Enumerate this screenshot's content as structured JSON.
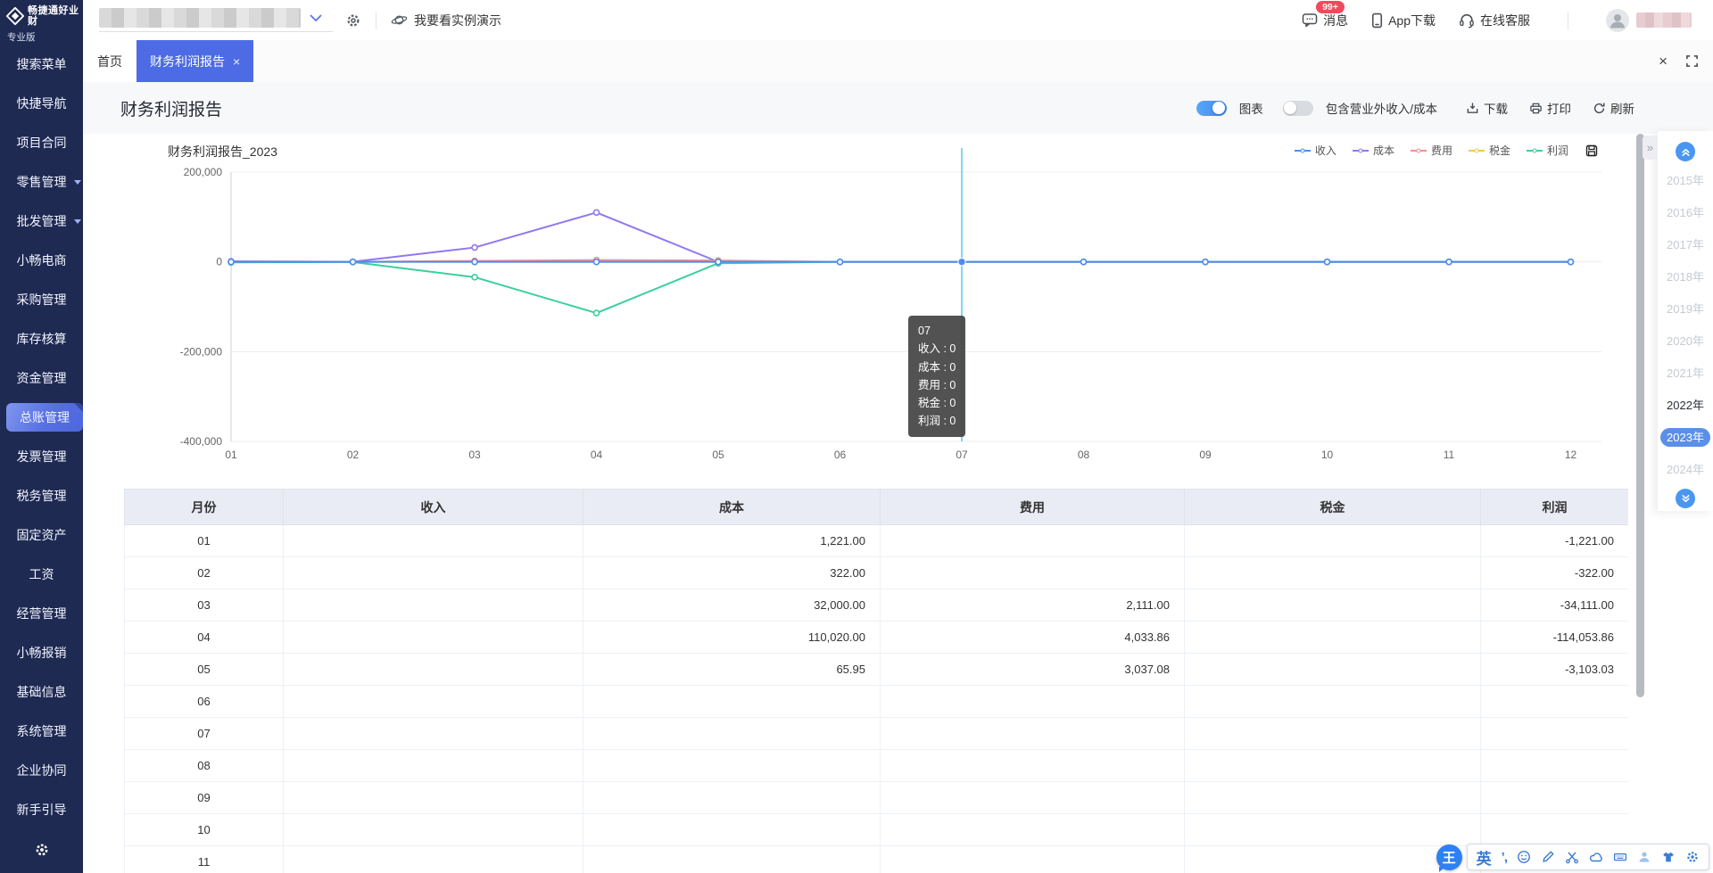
{
  "app": {
    "logo_title": "畅捷通好业财",
    "logo_subtitle": "专业版",
    "accent": "#4d6be5",
    "sidebar_bg": "#1f2a52"
  },
  "sidebar": {
    "items": [
      {
        "label": "搜索菜单"
      },
      {
        "label": "快捷导航"
      },
      {
        "label": "项目合同"
      },
      {
        "label": "零售管理",
        "caret": true
      },
      {
        "label": "批发管理",
        "caret": true
      },
      {
        "label": "小畅电商"
      },
      {
        "label": "采购管理"
      },
      {
        "label": "库存核算"
      },
      {
        "label": "资金管理"
      },
      {
        "label": "总账管理",
        "active": true
      },
      {
        "label": "发票管理"
      },
      {
        "label": "税务管理"
      },
      {
        "label": "固定资产"
      },
      {
        "label": "工资"
      },
      {
        "label": "经营管理"
      },
      {
        "label": "小畅报销"
      },
      {
        "label": "基础信息"
      },
      {
        "label": "系统管理"
      },
      {
        "label": "企业协同"
      },
      {
        "label": "新手引导"
      }
    ]
  },
  "topbar": {
    "demo_label": "我要看实例演示",
    "messages_label": "消息",
    "messages_badge": "99+",
    "app_download_label": "App下载",
    "support_label": "在线客服"
  },
  "tabs": {
    "items": [
      {
        "label": "首页",
        "active": false
      },
      {
        "label": "财务利润报告",
        "active": true,
        "closable": true
      }
    ]
  },
  "page": {
    "title": "财务利润报告",
    "chart_toggle_label": "图表",
    "chart_toggle_on": true,
    "include_toggle_label": "包含营业外收入/成本",
    "include_toggle_on": false,
    "download_label": "下载",
    "print_label": "打印",
    "refresh_label": "刷新"
  },
  "chart_data": {
    "type": "line",
    "title": "财务利润报告_2023",
    "categories": [
      "01",
      "02",
      "03",
      "04",
      "05",
      "06",
      "07",
      "08",
      "09",
      "10",
      "11",
      "12"
    ],
    "series": [
      {
        "name": "收入",
        "color": "#4e8cf0",
        "values": [
          0,
          0,
          0,
          0,
          0,
          0,
          0,
          0,
          0,
          0,
          0,
          0
        ]
      },
      {
        "name": "成本",
        "color": "#9277f0",
        "values": [
          1221,
          322,
          32000,
          110020,
          65.95,
          0,
          0,
          0,
          0,
          0,
          0,
          0
        ]
      },
      {
        "name": "费用",
        "color": "#f08f8f",
        "values": [
          0,
          0,
          2111,
          4033.86,
          3037.08,
          0,
          0,
          0,
          0,
          0,
          0,
          0
        ]
      },
      {
        "name": "税金",
        "color": "#f5c64a",
        "values": [
          0,
          0,
          0,
          0,
          0,
          0,
          0,
          0,
          0,
          0,
          0,
          0
        ]
      },
      {
        "name": "利润",
        "color": "#3bcf9e",
        "values": [
          -1221,
          -322,
          -34111,
          -114053.86,
          -3103.03,
          0,
          0,
          0,
          0,
          0,
          0,
          0
        ]
      }
    ],
    "ylim": [
      -400000,
      200000
    ],
    "yticks": [
      200000,
      0,
      -200000,
      -400000
    ],
    "ytick_labels": [
      "200,000",
      "0",
      "-200,000",
      "-400,000"
    ],
    "highlight_category": "07",
    "crosshair_color": "#59c9ec",
    "grid": true,
    "legend_position": "top-right"
  },
  "tooltip": {
    "title": "07",
    "lines": [
      "收入 : 0",
      "成本 : 0",
      "费用 : 0",
      "税金 : 0",
      "利润 : 0"
    ]
  },
  "table": {
    "headers": [
      "月份",
      "收入",
      "成本",
      "费用",
      "税金",
      "利润"
    ],
    "rows": [
      [
        "01",
        "",
        "1,221.00",
        "",
        "",
        "-1,221.00"
      ],
      [
        "02",
        "",
        "322.00",
        "",
        "",
        "-322.00"
      ],
      [
        "03",
        "",
        "32,000.00",
        "2,111.00",
        "",
        "-34,111.00"
      ],
      [
        "04",
        "",
        "110,020.00",
        "4,033.86",
        "",
        "-114,053.86"
      ],
      [
        "05",
        "",
        "65.95",
        "3,037.08",
        "",
        "-3,103.03"
      ],
      [
        "06",
        "",
        "",
        "",
        "",
        ""
      ],
      [
        "07",
        "",
        "",
        "",
        "",
        ""
      ],
      [
        "08",
        "",
        "",
        "",
        "",
        ""
      ],
      [
        "09",
        "",
        "",
        "",
        "",
        ""
      ],
      [
        "10",
        "",
        "",
        "",
        "",
        ""
      ],
      [
        "11",
        "",
        "",
        "",
        "",
        ""
      ]
    ]
  },
  "year_panel": {
    "years": [
      {
        "label": "2015年"
      },
      {
        "label": "2016年"
      },
      {
        "label": "2017年"
      },
      {
        "label": "2018年"
      },
      {
        "label": "2019年"
      },
      {
        "label": "2020年"
      },
      {
        "label": "2021年"
      },
      {
        "label": "2022年",
        "emphasis": true
      },
      {
        "label": "2023年",
        "active": true
      },
      {
        "label": "2024年"
      }
    ]
  },
  "ime": {
    "badge": "王",
    "mode": "英",
    "icons": [
      "quote-icon",
      "smiley-icon",
      "pencil-icon",
      "scissors-icon",
      "cloud-icon",
      "keyboard-icon",
      "person-icon",
      "shirt-icon",
      "gear-icon"
    ]
  }
}
